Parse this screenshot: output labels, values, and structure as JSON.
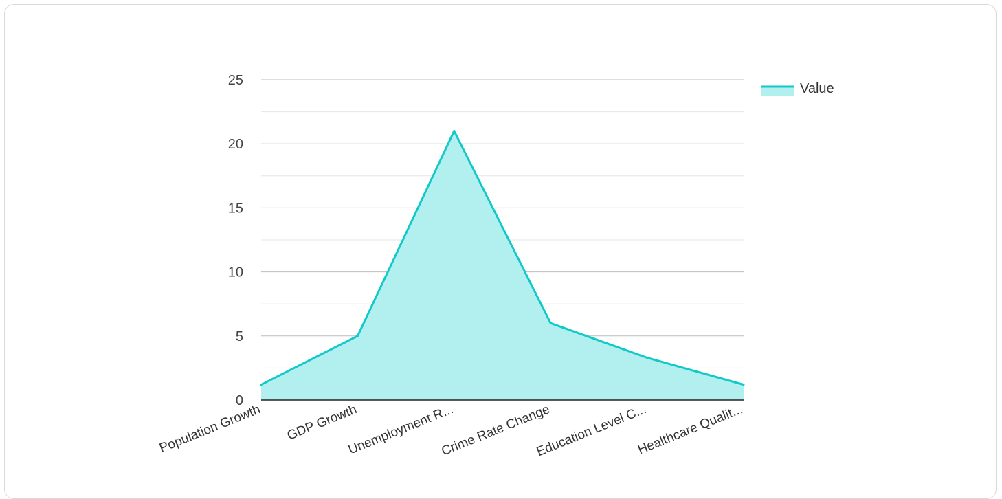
{
  "chart_data": {
    "type": "area",
    "categories": [
      "Population Growth",
      "GDP Growth",
      "Unemployment R...",
      "Crime Rate Change",
      "Education Level C...",
      "Healthcare Qualit..."
    ],
    "series": [
      {
        "name": "Value",
        "values": [
          1.2,
          5,
          21,
          6,
          3.3,
          1.2
        ]
      }
    ],
    "ylim": [
      0,
      25
    ],
    "yticks": [
      0,
      5,
      10,
      15,
      20,
      25
    ],
    "grid": true,
    "legend": "top-right",
    "colors": {
      "line": "#12c9c9",
      "fill": "#b2efef"
    }
  }
}
